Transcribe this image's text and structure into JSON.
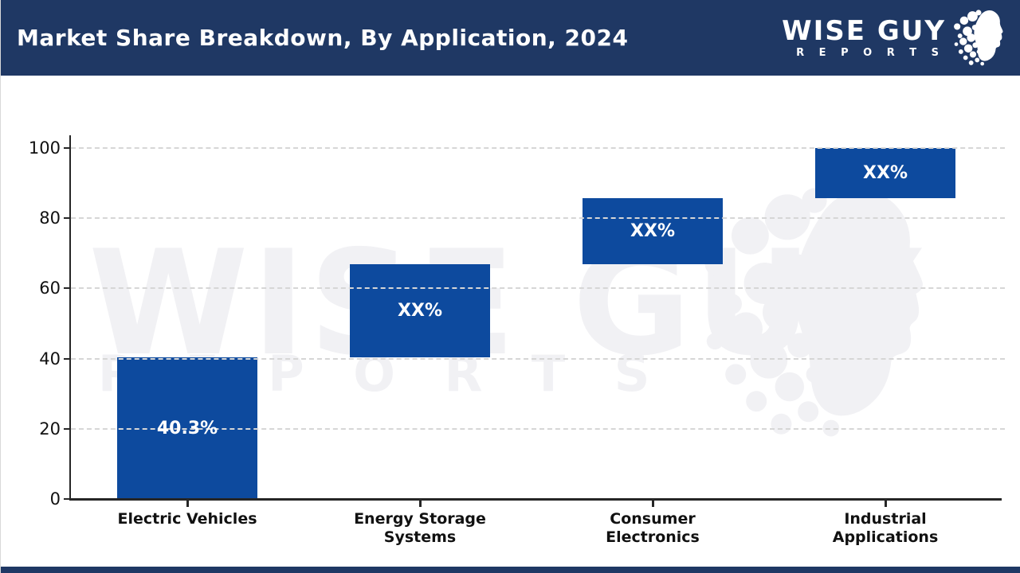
{
  "header": {
    "title": "Market Share Breakdown, By Application, 2024",
    "logo": {
      "line1": "WISE GUY",
      "line2": "R E P O R T S"
    }
  },
  "watermark": {
    "line1": "WISE GUY",
    "line2": "R E P O R T S"
  },
  "colors": {
    "header_navy": "#1f3864",
    "bar_blue": "#0d4a9e",
    "gridline": "#d6d6d6",
    "axis": "#262626",
    "watermark": "#f1f1f4"
  },
  "chart_data": {
    "type": "bar",
    "subtype": "waterfall",
    "title": "Market Share Breakdown, By Application, 2024",
    "categories": [
      "Electric Vehicles",
      "Energy Storage\nSystems",
      "Consumer\nElectronics",
      "Industrial\nApplications"
    ],
    "series": [
      {
        "name": "Electric Vehicles",
        "start": 0,
        "end": 40.3,
        "label": "40.3%"
      },
      {
        "name": "Energy Storage Systems",
        "start": 40.3,
        "end": 66.8,
        "label": "XX%"
      },
      {
        "name": "Consumer Electronics",
        "start": 66.8,
        "end": 85.8,
        "label": "XX%"
      },
      {
        "name": "Industrial Applications",
        "start": 85.8,
        "end": 100,
        "label": "XX%"
      }
    ],
    "xlabel": "",
    "ylabel": "",
    "ylim": [
      0,
      100
    ],
    "yticks": [
      0,
      20,
      40,
      60,
      80,
      100
    ],
    "grid": "horizontal-dashed",
    "legend": "none",
    "bar_color": "#0d4a9e",
    "value_label_color": "#ffffff"
  }
}
